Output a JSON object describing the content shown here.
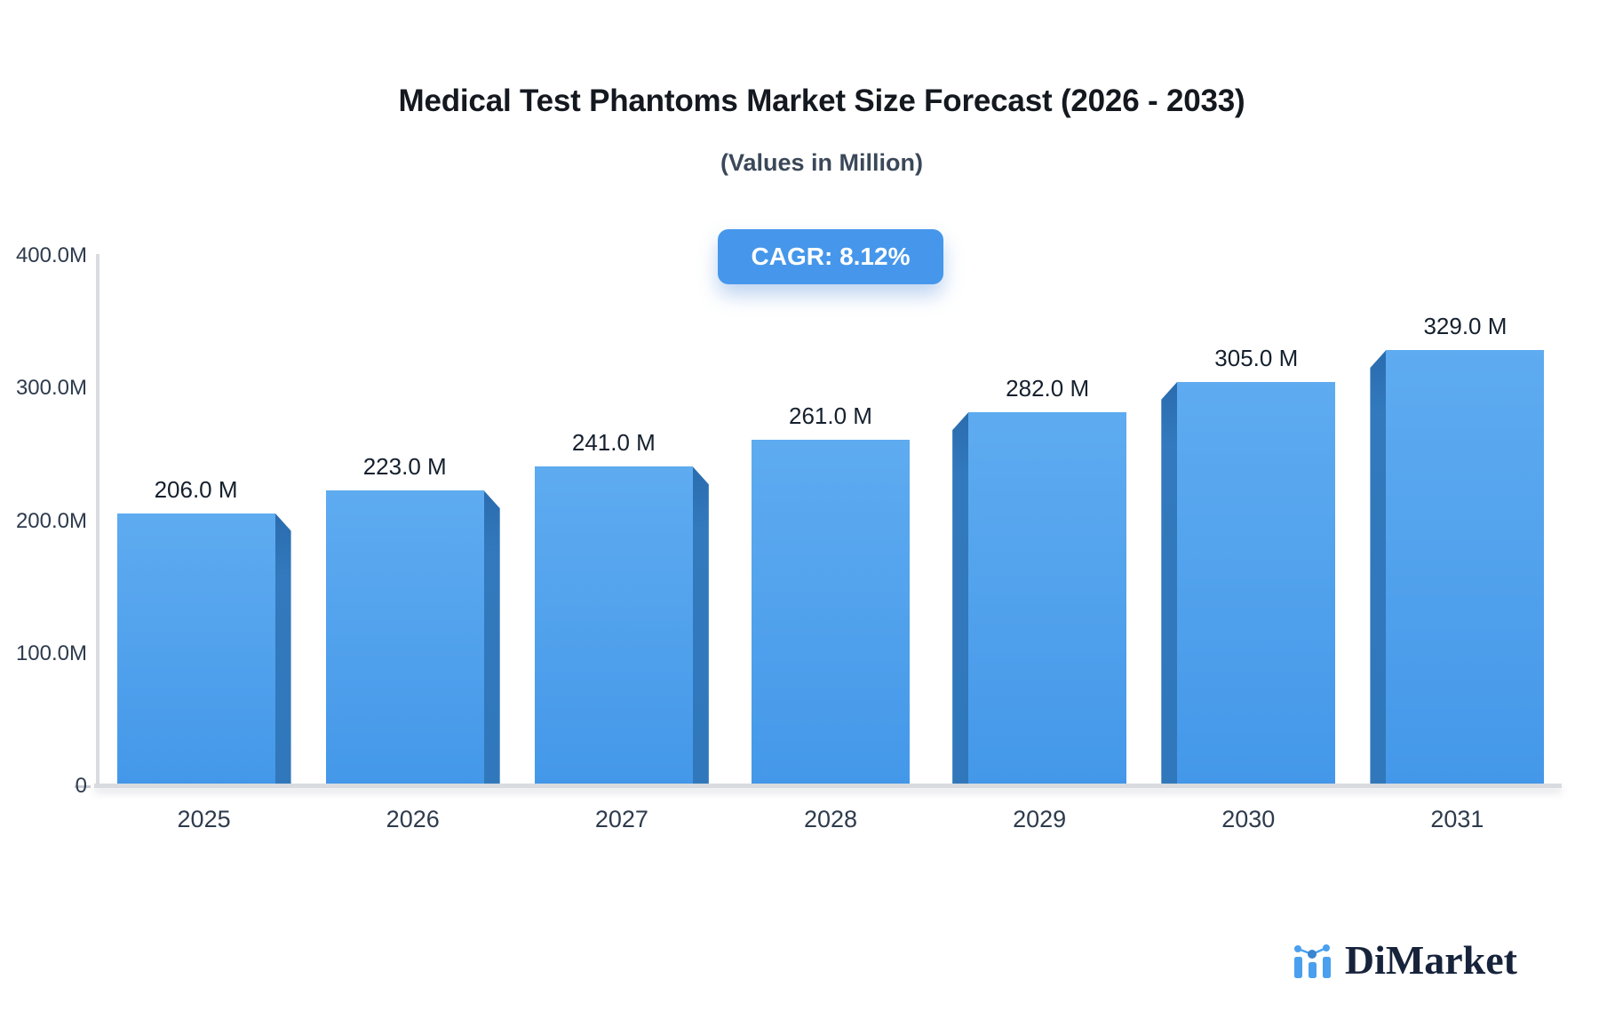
{
  "header": {
    "title": "Medical Test Phantoms Market Size Forecast (2026 - 2033)",
    "subtitle": "(Values in Million)",
    "cagr_label": "CAGR: 8.12%"
  },
  "chart_data": {
    "type": "bar",
    "title": "Medical Test Phantoms Market Size Forecast (2026 - 2033)",
    "subtitle": "(Values in Million)",
    "annotation": "CAGR: 8.12%",
    "categories": [
      "2025",
      "2026",
      "2027",
      "2028",
      "2029",
      "2030",
      "2031"
    ],
    "values": [
      206,
      223,
      241,
      261,
      282,
      305,
      329
    ],
    "value_labels": [
      "206.0 M",
      "223.0 M",
      "241.0 M",
      "261.0 M",
      "282.0 M",
      "305.0 M",
      "329.0 M"
    ],
    "ylim": [
      0,
      400
    ],
    "yticks": [
      {
        "value": 0,
        "label": "0"
      },
      {
        "value": 100,
        "label": "100.0M"
      },
      {
        "value": 200,
        "label": "200.0M"
      },
      {
        "value": 300,
        "label": "300.0M"
      },
      {
        "value": 400,
        "label": "400.0M"
      }
    ],
    "grid": false,
    "legend": false,
    "bar_3d_sides": [
      "right",
      "right",
      "right",
      "none",
      "left",
      "left",
      "left"
    ],
    "colors": {
      "bar_face_top": "#5eabf0",
      "bar_face_bottom": "#4498e9",
      "bar_side": "#3078bb",
      "axis_line": "#d8dbdf",
      "badge_bg": "#4697eb",
      "badge_text": "#ffffff",
      "value_text": "#15202e",
      "axis_text": "#2e3b4d",
      "title_text": "#14181f",
      "subtitle_text": "#3a4859"
    }
  },
  "footer": {
    "logo_text": "DiMarket",
    "logo_blue": "#4aa0ee",
    "logo_dot_dark": "#3a85d0",
    "logo_text_color": "#16233b"
  }
}
